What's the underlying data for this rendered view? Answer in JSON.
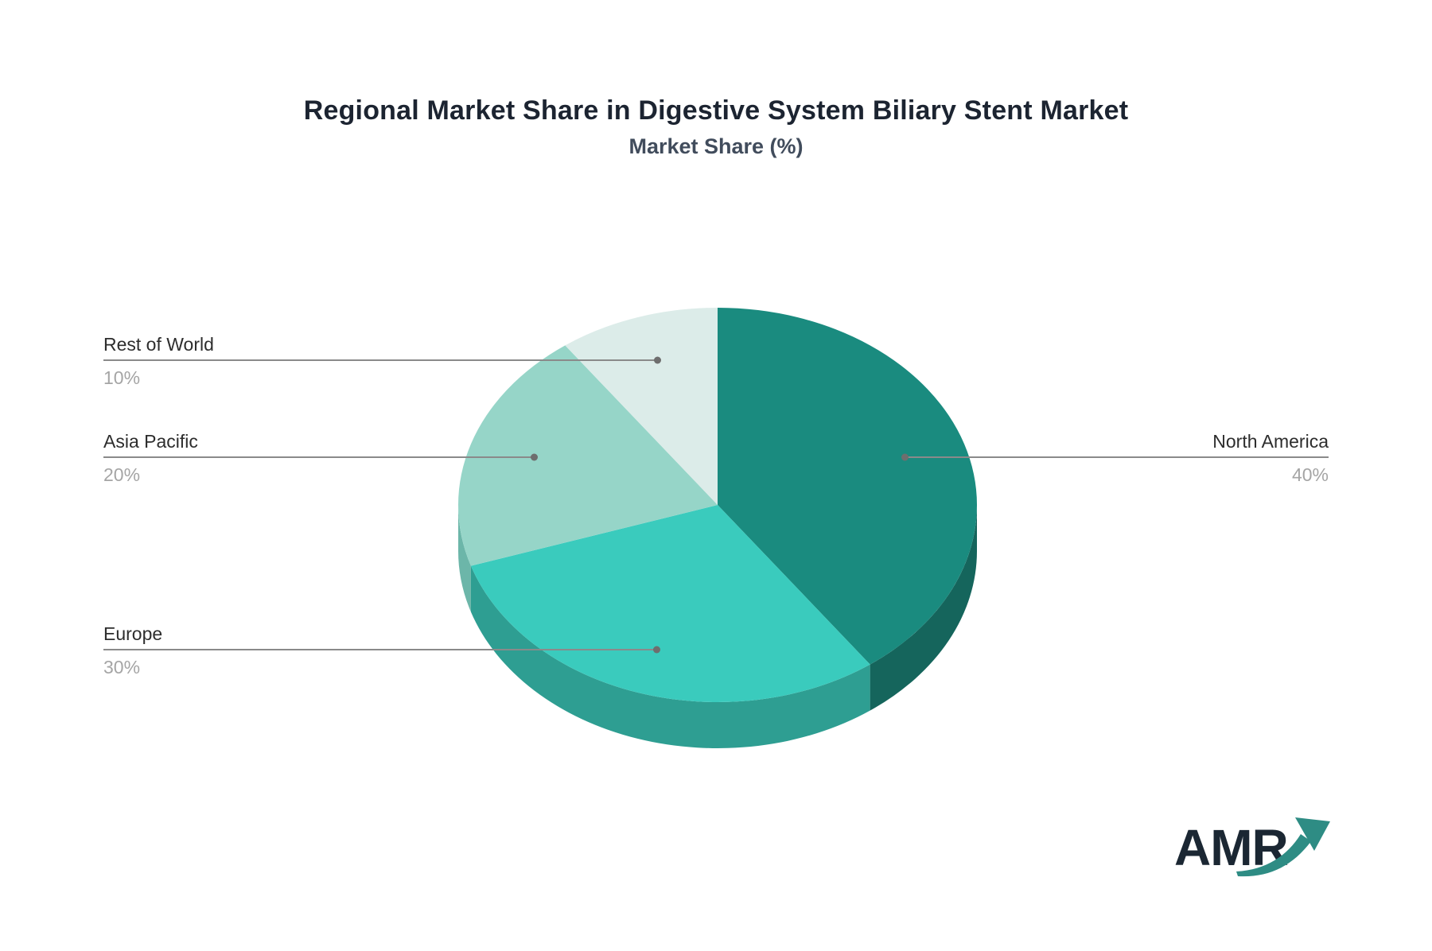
{
  "chart_data": {
    "type": "pie",
    "title": "Regional Market Share in Digestive System Biliary Stent Market",
    "subtitle": "Market Share (%)",
    "categories": [
      "North America",
      "Europe",
      "Asia Pacific",
      "Rest of World"
    ],
    "values": [
      40,
      30,
      20,
      10
    ],
    "unit": "%",
    "start_angle_deg": 0,
    "direction": "clockwise",
    "effect": "3d-extruded",
    "colors": [
      "#1a8b7f",
      "#3acbbd",
      "#96d5c8",
      "#dcece9"
    ],
    "side_colors": [
      "#15655c",
      "#2e9e92",
      "#6cb6a9",
      "#b9d8d2"
    ],
    "labels_position": "callout-lines",
    "callouts": [
      {
        "label": "Rest of World",
        "value": "10%",
        "side": "left"
      },
      {
        "label": "Asia Pacific",
        "value": "20%",
        "side": "left"
      },
      {
        "label": "Europe",
        "value": "30%",
        "side": "left"
      },
      {
        "label": "North America",
        "value": "40%",
        "side": "right"
      }
    ]
  },
  "style": {
    "title_color": "#1c2431",
    "subtitle_color": "#414c5c",
    "label_color": "#2d2d2d",
    "value_color": "#a5a5a5",
    "leader_line_color": "#8a8a8a",
    "leader_dot_color": "#6e6e6e",
    "background": "#ffffff"
  },
  "logo": {
    "text": "AMR",
    "text_color": "#1b2733",
    "arrow_color": "#2e8c84"
  }
}
